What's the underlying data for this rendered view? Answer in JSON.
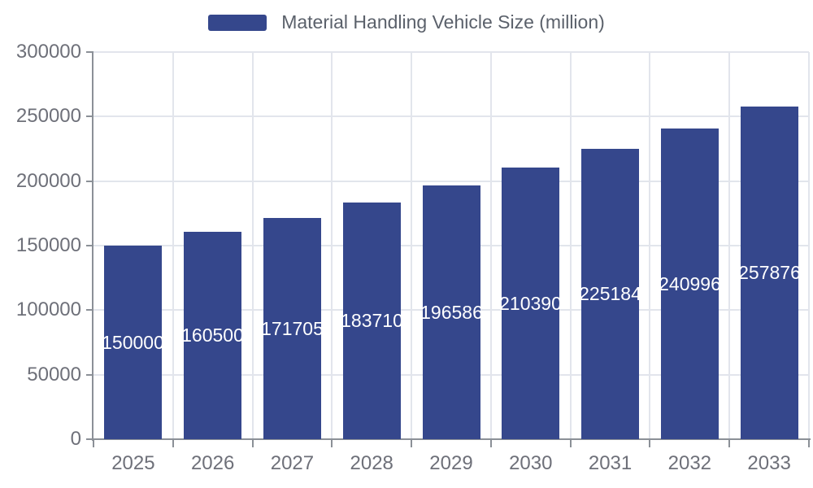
{
  "legend": {
    "label": "Material Handling Vehicle Size (million)"
  },
  "colors": {
    "bar": "#35478c",
    "bar_label_text": "#ffffff",
    "axis_text": "#6e7079",
    "legend_text": "#5b616b",
    "gridline": "#e2e5ec",
    "axis_line": "#8b9097",
    "background": "#ffffff"
  },
  "chart_data": {
    "type": "bar",
    "title": "Material Handling Vehicle Size (million)",
    "categories": [
      "2025",
      "2026",
      "2027",
      "2028",
      "2029",
      "2030",
      "2031",
      "2032",
      "2033"
    ],
    "values": [
      150000,
      160500,
      171705,
      183710,
      196586,
      210390,
      225184,
      240996,
      257876
    ],
    "series_name": "Material Handling Vehicle Size (million)",
    "xlabel": "",
    "ylabel": "",
    "ylim": [
      0,
      300000
    ],
    "ytick_step": 50000,
    "ytick_labels": [
      "0",
      "50000",
      "100000",
      "150000",
      "200000",
      "250000",
      "300000"
    ],
    "grid": true,
    "legend_position": "top-center",
    "bar_label_position": "inside-center"
  }
}
